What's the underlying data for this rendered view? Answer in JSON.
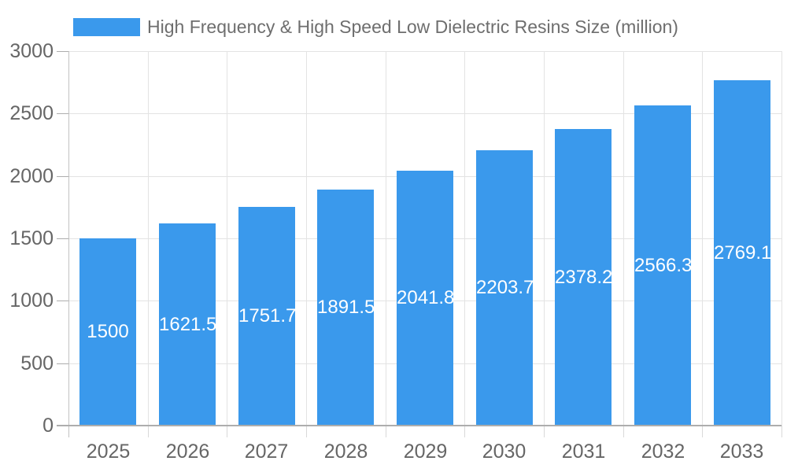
{
  "chart_data": {
    "type": "bar",
    "title": "High Frequency & High Speed Low Dielectric Resins Size (million)",
    "categories": [
      "2025",
      "2026",
      "2027",
      "2028",
      "2029",
      "2030",
      "2031",
      "2032",
      "2033"
    ],
    "values": [
      1500,
      1621.5,
      1751.7,
      1891.5,
      2041.8,
      2203.7,
      2378.2,
      2566.3,
      2769.1
    ],
    "value_labels": [
      "1500",
      "1621.5",
      "1751.7",
      "1891.5",
      "2041.8",
      "2203.7",
      "2378.2",
      "2566.3",
      "2769.1"
    ],
    "xlabel": "",
    "ylabel": "",
    "ylim": [
      0,
      3000
    ],
    "yticks": [
      0,
      500,
      1000,
      1500,
      2000,
      2500,
      3000
    ],
    "grid": true,
    "legend_position": "top-left",
    "colors": {
      "bar": "#3a99ec",
      "bar_label": "#ffffff",
      "grid": "#e3e3e3",
      "axis_line": "#c2c2c2",
      "baseline": "#adadad",
      "y_tick": "#adadad",
      "x_tick": "#d9d9d9",
      "axis_text": "#666666",
      "title_text": "#6e6e6e"
    }
  }
}
